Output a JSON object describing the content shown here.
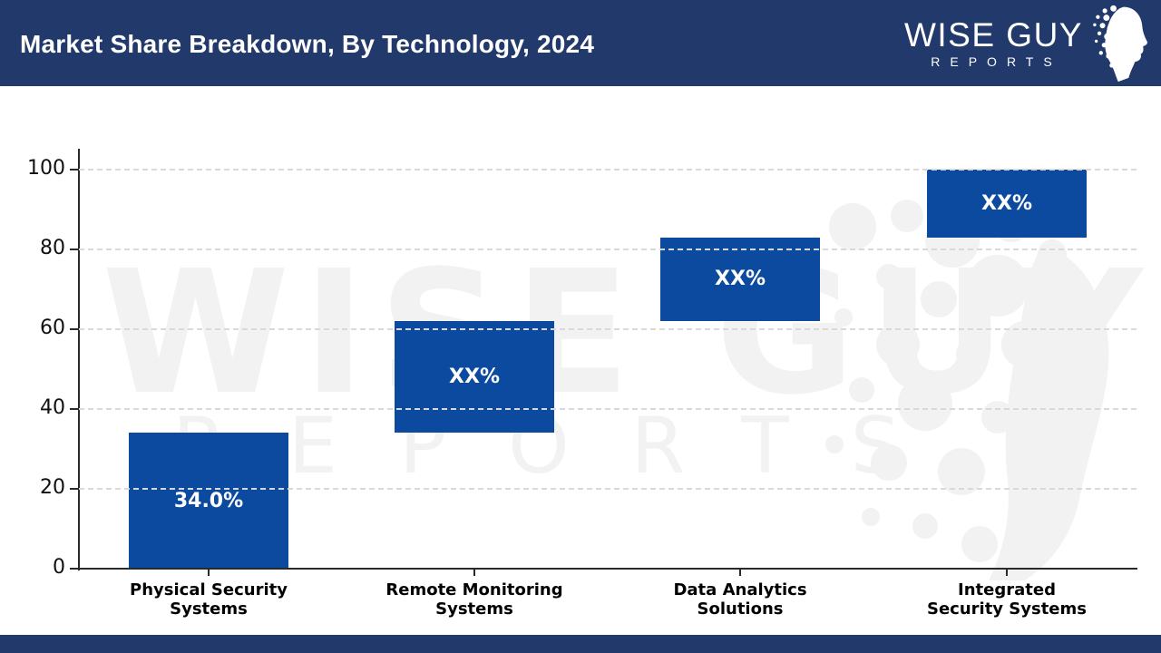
{
  "header": {
    "title": "Market Share Breakdown, By Technology, 2024",
    "logo": {
      "name": "WISE GUY",
      "subtitle": "REPORTS"
    }
  },
  "watermark": {
    "line1": "WISE GUY",
    "line2": "REPORTS"
  },
  "chart_data": {
    "type": "bar",
    "subtype": "waterfall",
    "title": "Market Share Breakdown, By Technology, 2024",
    "categories": [
      "Physical Security\nSystems",
      "Remote Monitoring\nSystems",
      "Data Analytics\nSolutions",
      "Integrated\nSecurity Systems"
    ],
    "segments": [
      {
        "category": "Physical Security Systems",
        "start": 0,
        "end": 34,
        "label": "34.0%"
      },
      {
        "category": "Remote Monitoring Systems",
        "start": 34,
        "end": 62,
        "label": "XX%"
      },
      {
        "category": "Data Analytics Solutions",
        "start": 62,
        "end": 83,
        "label": "XX%"
      },
      {
        "category": "Integrated Security Systems",
        "start": 83,
        "end": 100,
        "label": "XX%"
      }
    ],
    "ylim": [
      0,
      100
    ],
    "yticks": [
      0,
      20,
      40,
      60,
      80,
      100
    ],
    "xlabel": "",
    "ylabel": "",
    "grid": "horizontal-dashed",
    "legend": "none",
    "colors": {
      "bar": "#0B4A9F",
      "bar_label": "#FFFFFF",
      "grid": "#D9D9D9",
      "axis": "#2A2A2A",
      "header_bg": "#21396B",
      "watermark": "#F2F2F3"
    }
  }
}
